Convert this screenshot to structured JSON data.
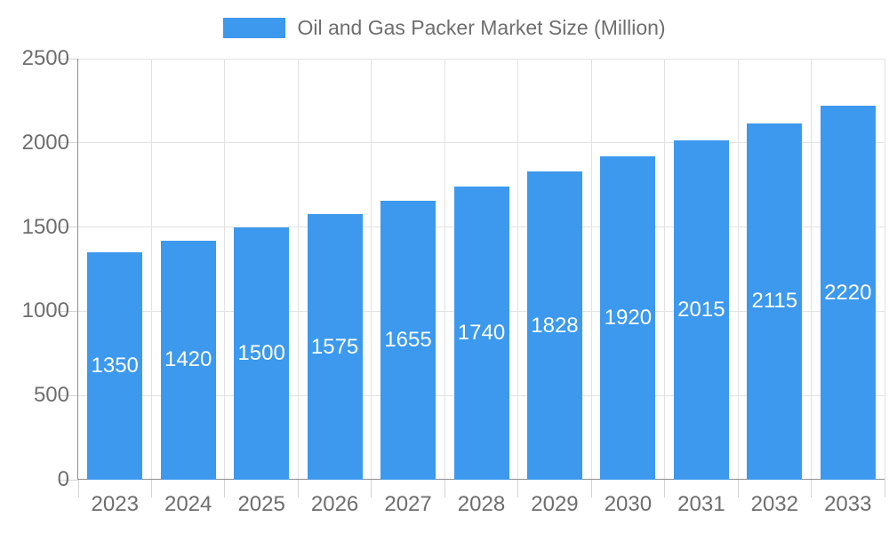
{
  "legend": {
    "items": [
      {
        "label": "Oil and Gas Packer Market Size (Million)",
        "swatch_color": "#3C99ED"
      }
    ]
  },
  "chart_data": {
    "type": "bar",
    "title": "Oil and Gas Packer Market Size (Million)",
    "categories": [
      "2023",
      "2024",
      "2025",
      "2026",
      "2027",
      "2028",
      "2029",
      "2030",
      "2031",
      "2032",
      "2033"
    ],
    "values": [
      1350,
      1420,
      1500,
      1575,
      1655,
      1740,
      1828,
      1920,
      2015,
      2115,
      2220
    ],
    "xlabel": "",
    "ylabel": "",
    "ylim": [
      0,
      2500
    ],
    "yticks": [
      0,
      500,
      1000,
      1500,
      2000,
      2500
    ],
    "grid": true,
    "legend_position": "top-center",
    "colors": {
      "bar": "#3C99ED",
      "value_label": "#FFFFFF",
      "axis_text": "#6E6E6E",
      "grid_line": "#E2E2E2",
      "axis_line": "#8E8E8E",
      "tick": "#D4D4D4",
      "background": "#FFFFFF"
    }
  }
}
